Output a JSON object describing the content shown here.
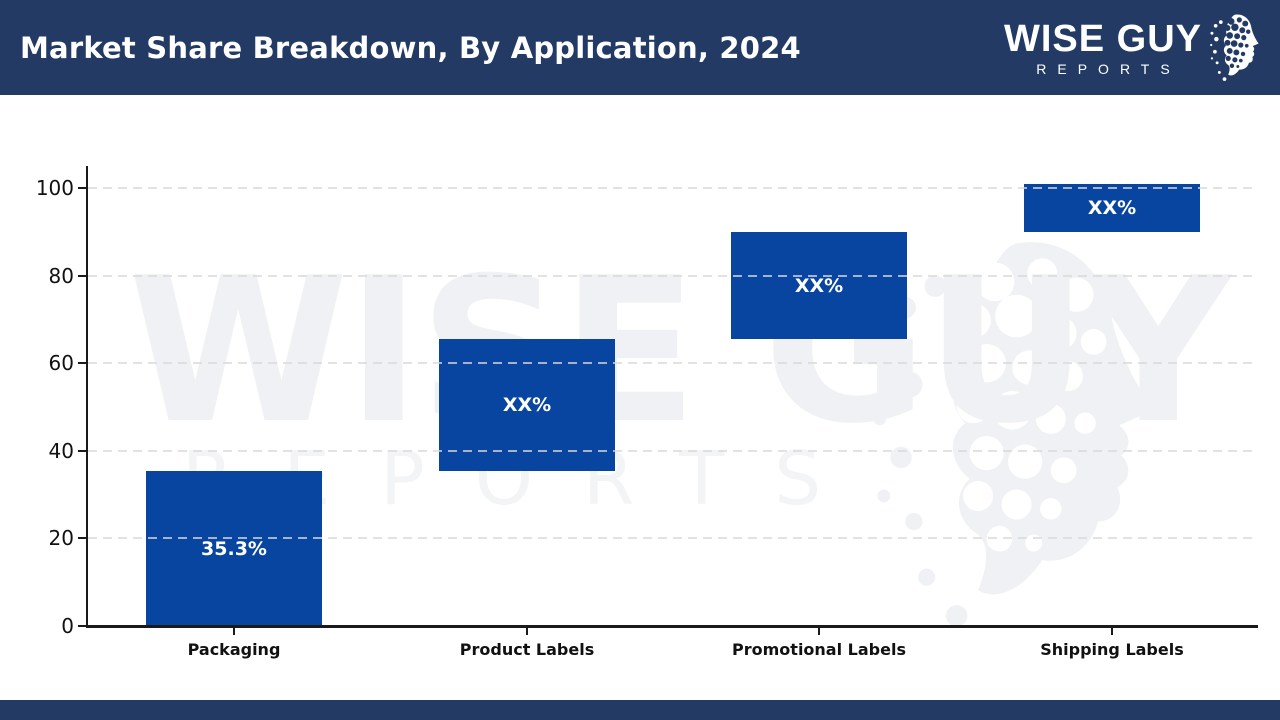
{
  "header": {
    "title": "Market Share Breakdown, By Application, 2024",
    "logo_line1": "WISE GUY",
    "logo_line2": "REPORTS"
  },
  "watermark": {
    "line1": "WISE GUY",
    "line2": "REPORTS"
  },
  "colors": {
    "header_bg": "#233A64",
    "footer_bg": "#233A64",
    "bar": "#0845A0",
    "grid": "#D9D9D9",
    "axis": "#1A1A1A",
    "bar_label": "#FFFFFF",
    "watermark": "#EFF1F4"
  },
  "chart_data": {
    "type": "bar",
    "subtype": "floating-waterfall",
    "title": "Market Share Breakdown, By Application, 2024",
    "categories": [
      "Packaging",
      "Product Labels",
      "Promotional Labels",
      "Shipping Labels"
    ],
    "segments": [
      {
        "category": "Packaging",
        "start": 0,
        "end": 35.3,
        "label": "35.3%"
      },
      {
        "category": "Product Labels",
        "start": 35.3,
        "end": 65.5,
        "label": "XX%"
      },
      {
        "category": "Promotional Labels",
        "start": 65.5,
        "end": 90.0,
        "label": "XX%"
      },
      {
        "category": "Shipping Labels",
        "start": 90.0,
        "end": 100.9,
        "label": "XX%"
      }
    ],
    "xlabel": "",
    "ylabel": "",
    "yticks": [
      0,
      20,
      40,
      60,
      80,
      100
    ],
    "ylim": [
      0,
      105
    ],
    "grid": "dashed-horizontal",
    "legend": "none"
  }
}
